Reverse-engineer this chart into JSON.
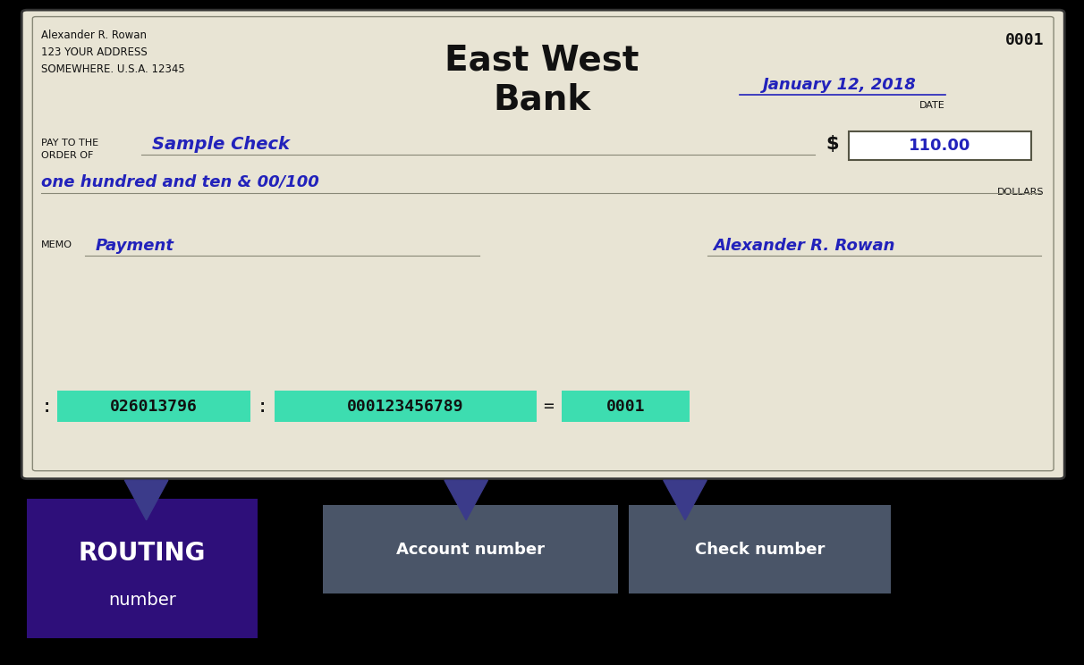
{
  "fig_width": 12.12,
  "fig_height": 7.44,
  "bg_color": "#000000",
  "check_bg": "#e8e4d4",
  "check_border": "#333333",
  "bank_name": "East West\nBank",
  "bank_name_color": "#111111",
  "check_number_top": "0001",
  "check_number_color": "#111111",
  "address_lines": [
    "Alexander R. Rowan",
    "123 YOUR ADDRESS",
    "SOMEWHERE. U.S.A. 12345"
  ],
  "address_color": "#111111",
  "date_label": "DATE",
  "date_value": "January 12, 2018",
  "date_color": "#2222bb",
  "pay_to_label": "PAY TO THE\nORDER OF",
  "payee": "Sample Check",
  "payee_color": "#2222bb",
  "dollar_sign": "$",
  "amount_box": "110.00",
  "amount_color": "#2222bb",
  "dollars_label": "DOLLARS",
  "amount_words": "one hundred and ten & 00/100",
  "amount_words_color": "#2222bb",
  "memo_label": "MEMO",
  "memo_value": "Payment",
  "memo_color": "#2222bb",
  "signature": "Alexander R. Rowan",
  "signature_color": "#2222bb",
  "routing_bg": "#2e0f7a",
  "routing_number": "026013796",
  "routing_number_bg": "#3dddb0",
  "routing_number_color": "#111111",
  "account_number": "000123456789",
  "account_number_bg": "#3dddb0",
  "account_number_color": "#111111",
  "check_num_bottom": "0001",
  "check_num_bottom_bg": "#3dddb0",
  "check_num_bottom_color": "#111111",
  "routing_label": "ROUTING",
  "routing_label2": "number",
  "routing_label_color": "#ffffff",
  "account_label": "Account number",
  "account_label_color": "#ffffff",
  "check_label": "Check number",
  "check_label_color": "#ffffff",
  "label_box_bg": "#4a5568",
  "arrow_color": "#3b3b8a"
}
